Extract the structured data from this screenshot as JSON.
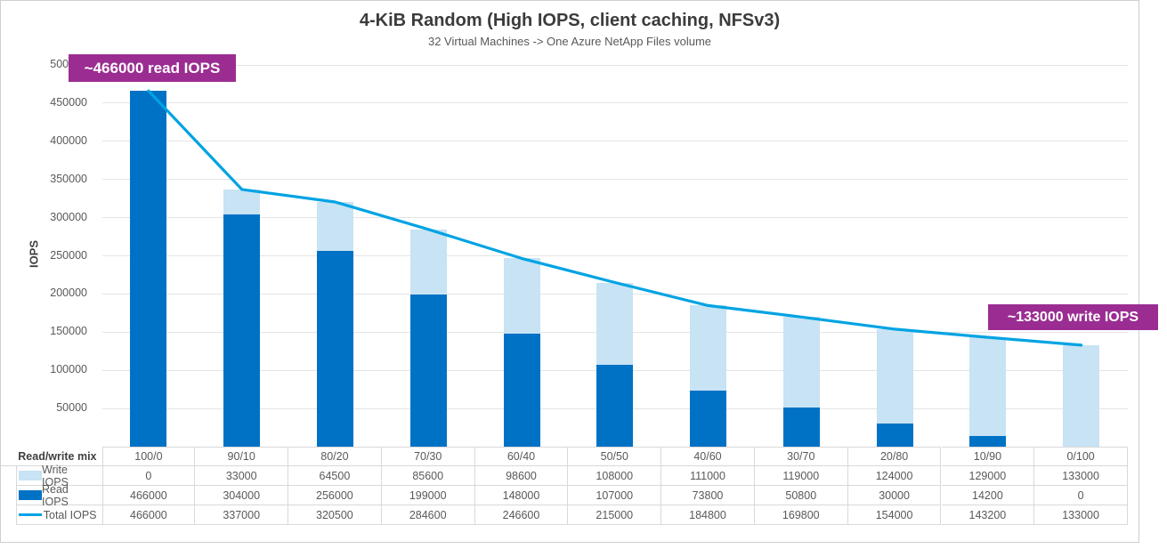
{
  "chart": {
    "title": "4-KiB Random (High IOPS, client caching, NFSv3)",
    "subtitle": "32 Virtual Machines -> One Azure NetApp Files volume",
    "y_axis_title": "IOPS"
  },
  "annotations": {
    "peak_read": "~466000 read IOPS",
    "peak_write": "~133000 write IOPS"
  },
  "colors": {
    "read_bar": "#0072C6",
    "write_bar": "#C7E3F4",
    "total_line": "#00A3E3",
    "annotation_bg": "#9B2D92",
    "gridline": "#E4E4E4",
    "table_border": "#D9D9D9",
    "text": "#595959"
  },
  "chart_data": {
    "type": "bar",
    "subtype": "stacked-bars-with-line-overlay",
    "title": "4-KiB Random (High IOPS, client caching, NFSv3)",
    "subtitle": "32 Virtual Machines -> One Azure NetApp Files volume",
    "row_header": "Read/write mix",
    "categories": [
      "100/0",
      "90/10",
      "80/20",
      "70/30",
      "60/40",
      "50/50",
      "40/60",
      "30/70",
      "20/80",
      "10/90",
      "0/100"
    ],
    "series": [
      {
        "name": "Write IOPS",
        "type": "bar",
        "stacked": true,
        "color": "#C7E3F4",
        "values": [
          0,
          33000,
          64500,
          85600,
          98600,
          108000,
          111000,
          119000,
          124000,
          129000,
          133000
        ]
      },
      {
        "name": "Read IOPS",
        "type": "bar",
        "stacked": true,
        "color": "#0072C6",
        "values": [
          466000,
          304000,
          256000,
          199000,
          148000,
          107000,
          73800,
          50800,
          30000,
          14200,
          0
        ]
      },
      {
        "name": "Total IOPS",
        "type": "line",
        "color": "#00A3E3",
        "values": [
          466000,
          337000,
          320500,
          284600,
          246600,
          215000,
          184800,
          169800,
          154000,
          143200,
          133000
        ]
      }
    ],
    "ylabel": "IOPS",
    "xlabel": "",
    "ylim": [
      0,
      500000
    ],
    "ytick_labels": [
      "50000",
      "100000",
      "150000",
      "200000",
      "250000",
      "300000",
      "350000",
      "400000",
      "450000",
      "500000"
    ],
    "grid": true,
    "legend_position": "data-table-left-keys"
  }
}
